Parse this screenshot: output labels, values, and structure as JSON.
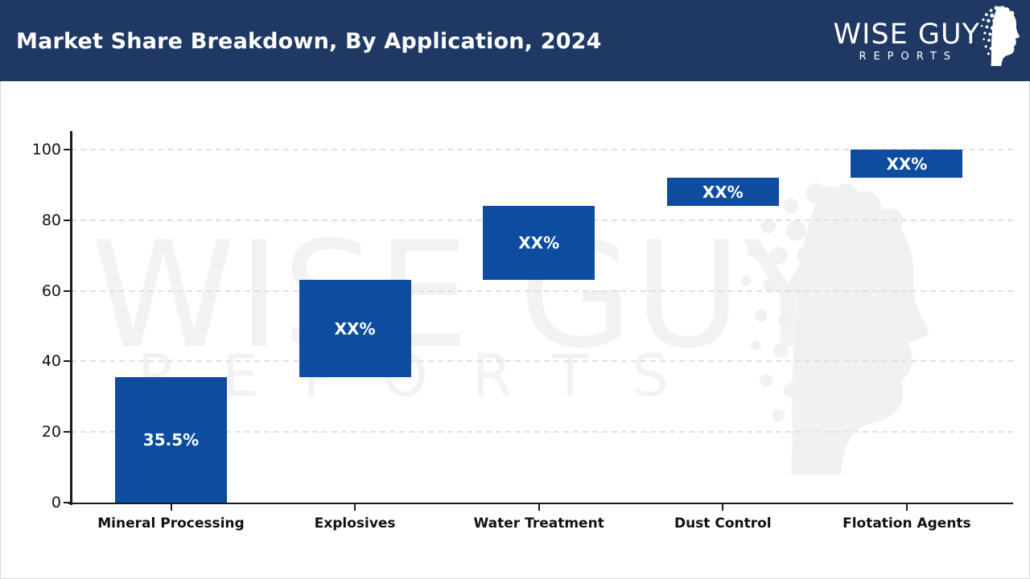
{
  "header": {
    "title": "Market Share Breakdown, By Application, 2024",
    "logo": {
      "line1": "WISE GUY",
      "line2": "REPORTS"
    }
  },
  "watermark": {
    "line1": "WISE GUY",
    "line2": "REPORTS"
  },
  "colors": {
    "header_bg": "#203864",
    "bar": "#0d4c9e",
    "bar_label": "#ffffff",
    "gridline": "#e0e0e0",
    "axis": "#1a1a1a",
    "watermark": "#f2f2f2"
  },
  "chart_data": {
    "type": "bar",
    "variant": "waterfall",
    "title": "Market Share Breakdown, By Application, 2024",
    "categories": [
      "Mineral Processing",
      "Explosives",
      "Water Treatment",
      "Dust Control",
      "Flotation Agents"
    ],
    "series": [
      {
        "name": "Market share (%)",
        "segments": [
          {
            "category": "Mineral Processing",
            "start": 0,
            "end": 35.5,
            "label": "35.5%"
          },
          {
            "category": "Explosives",
            "start": 35.5,
            "end": 63,
            "label": "XX%"
          },
          {
            "category": "Water Treatment",
            "start": 63,
            "end": 84,
            "label": "XX%"
          },
          {
            "category": "Dust Control",
            "start": 84,
            "end": 92,
            "label": "XX%"
          },
          {
            "category": "Flotation Agents",
            "start": 92,
            "end": 100,
            "label": "XX%"
          }
        ]
      }
    ],
    "ylim": [
      0,
      100
    ],
    "yticks": [
      0,
      20,
      40,
      60,
      80,
      100
    ],
    "xlabel": "",
    "ylabel": "",
    "legend": "none",
    "grid": {
      "horizontal": true,
      "style": "dashed"
    }
  }
}
